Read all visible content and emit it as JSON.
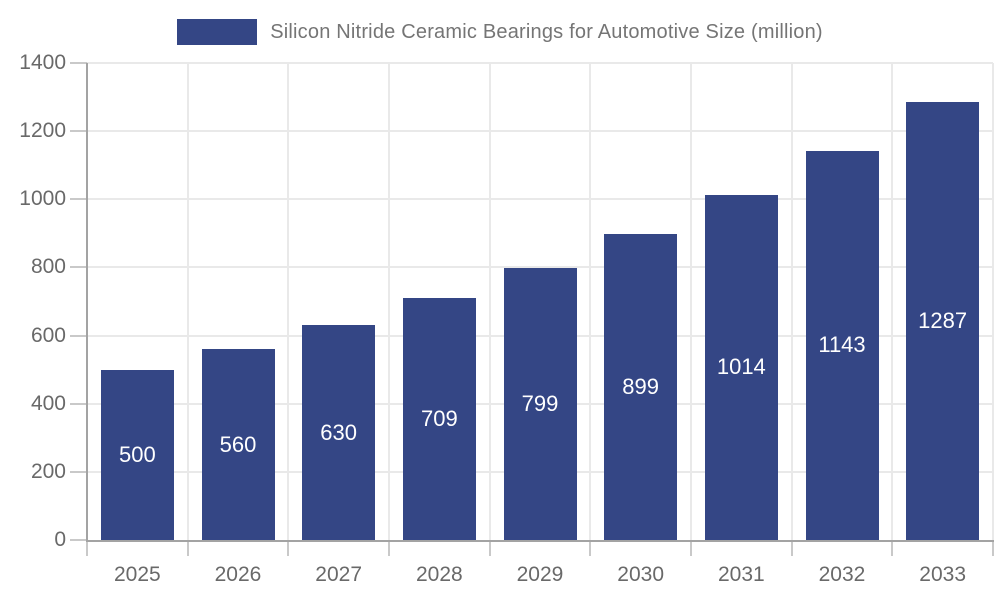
{
  "legend": {
    "label": "Silicon Nitride Ceramic Bearings for Automotive Size (million)"
  },
  "colors": {
    "bar": "#344685",
    "bar_label": "#ffffff",
    "legend_text": "#757575",
    "tick_text": "#696969",
    "grid": "#e9e9e9",
    "tick": "#c9c9c9",
    "axis": "#a3a3a3",
    "background": "#ffffff"
  },
  "chart_data": {
    "type": "bar",
    "title": "Silicon Nitride Ceramic Bearings for Automotive Size (million)",
    "categories": [
      "2025",
      "2026",
      "2027",
      "2028",
      "2029",
      "2030",
      "2031",
      "2032",
      "2033"
    ],
    "values": [
      500,
      560,
      630,
      709,
      799,
      899,
      1014,
      1143,
      1287
    ],
    "xlabel": "",
    "ylabel": "",
    "ylim": [
      0,
      1400
    ],
    "y_ticks": [
      0,
      200,
      400,
      600,
      800,
      1000,
      1200,
      1400
    ],
    "grid": true,
    "legend_position": "top-center",
    "value_labels": "inside-center"
  }
}
